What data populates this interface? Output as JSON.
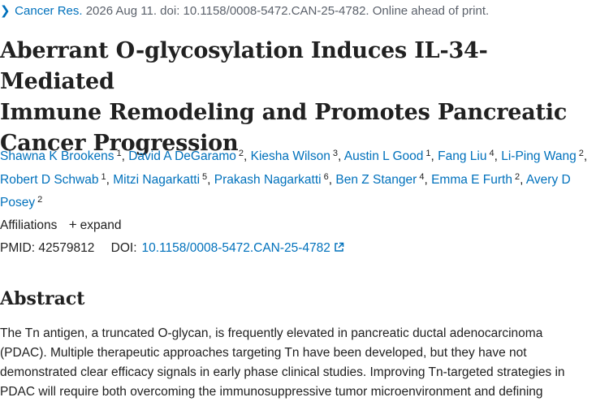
{
  "citation": {
    "journal": "Cancer Res.",
    "details": " 2026 Aug 11. doi: 10.1158/0008-5472.CAN-25-4782. Online ahead of print."
  },
  "title_lines": [
    "Aberrant O-glycosylation Induces IL-34-Mediated",
    "Immune Remodeling and Promotes Pancreatic",
    "Cancer Progression"
  ],
  "authors": [
    {
      "name": "Shawna K Brookens",
      "aff": "1"
    },
    {
      "name": "David A DeGaramo",
      "aff": "2"
    },
    {
      "name": "Kiesha Wilson",
      "aff": "3"
    },
    {
      "name": "Austin L Good",
      "aff": "1"
    },
    {
      "name": "Fang Liu",
      "aff": "4"
    },
    {
      "name": "Li-Ping Wang",
      "aff": "2"
    },
    {
      "name": "Robert D Schwab",
      "aff": "1"
    },
    {
      "name": "Mitzi Nagarkatti",
      "aff": "5"
    },
    {
      "name": "Prakash Nagarkatti",
      "aff": "6"
    },
    {
      "name": "Ben Z Stanger",
      "aff": "4"
    },
    {
      "name": "Emma E Furth",
      "aff": "2"
    },
    {
      "name": "Avery D Posey",
      "aff": "2"
    }
  ],
  "affiliations": {
    "label": "Affiliations",
    "expand_label": "expand"
  },
  "ids": {
    "pmid_label": "PMID:",
    "pmid": "42579812",
    "doi_label": "DOI:",
    "doi": "10.1158/0008-5472.CAN-25-4782"
  },
  "abstract": {
    "heading": "Abstract",
    "lines": [
      "The Tn antigen, a truncated O-glycan, is frequently elevated in pancreatic ductal adenocarcinoma",
      "(PDAC). Multiple therapeutic approaches targeting Tn have been developed, but they have not",
      "demonstrated clear efficacy signals in early phase clinical studies. Improving Tn-targeted strategies in",
      "PDAC will require both overcoming the immunosuppressive tumor microenvironment and defining"
    ]
  },
  "icons": {
    "citation_chevron": "chevron-right-icon",
    "expand": "plus-icon",
    "doi_external": "external-link-icon"
  },
  "colors": {
    "link": "#0071bc",
    "text": "#212121",
    "muted": "#5b616b"
  }
}
